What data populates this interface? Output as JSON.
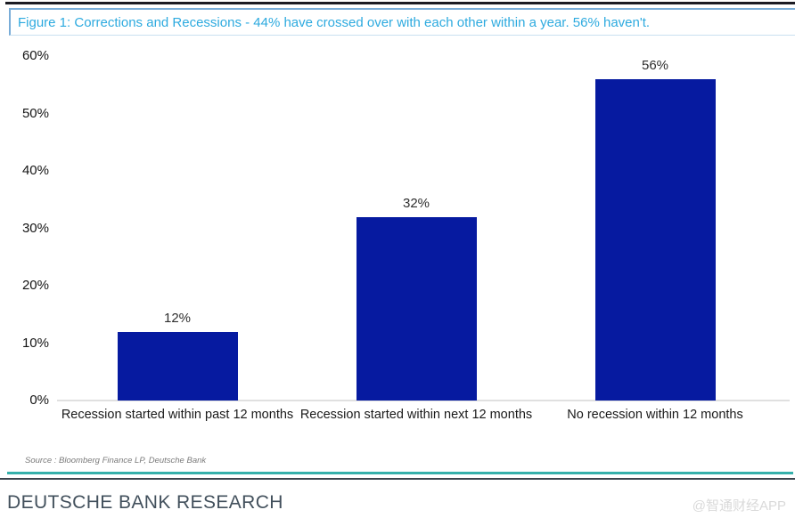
{
  "page": {
    "title": "Figure 1: Corrections and Recessions - 44% have crossed over with each other within a year. 56% haven't.",
    "source": "Source : Bloomberg Finance LP, Deutsche Bank",
    "footer": "DEUTSCHE BANK RESEARCH",
    "watermark": "@智通财经APP"
  },
  "colors": {
    "bar": "#061aa0",
    "title_text": "#2daadf",
    "title_border": "#79add8",
    "top_line": "#1b1b23",
    "teal_line": "#35b0ab",
    "footer_line": "#3c434c",
    "footer_text": "#42505c"
  },
  "chart_data": {
    "type": "bar",
    "title": "Figure 1: Corrections and Recessions - 44% have crossed over with each other within a year. 56% haven't.",
    "categories": [
      "Recession started within past 12 months",
      "Recession started within next 12 months",
      "No recession within 12 months"
    ],
    "values": [
      12,
      32,
      56
    ],
    "value_labels": [
      "12%",
      "32%",
      "56%"
    ],
    "xlabel": "",
    "ylabel": "",
    "ylim": [
      0,
      60
    ],
    "yticks": [
      "60%",
      "50%",
      "40%",
      "30%",
      "20%",
      "10%",
      "0%"
    ],
    "grid": false,
    "legend": null,
    "bar_color": "#061aa0"
  }
}
